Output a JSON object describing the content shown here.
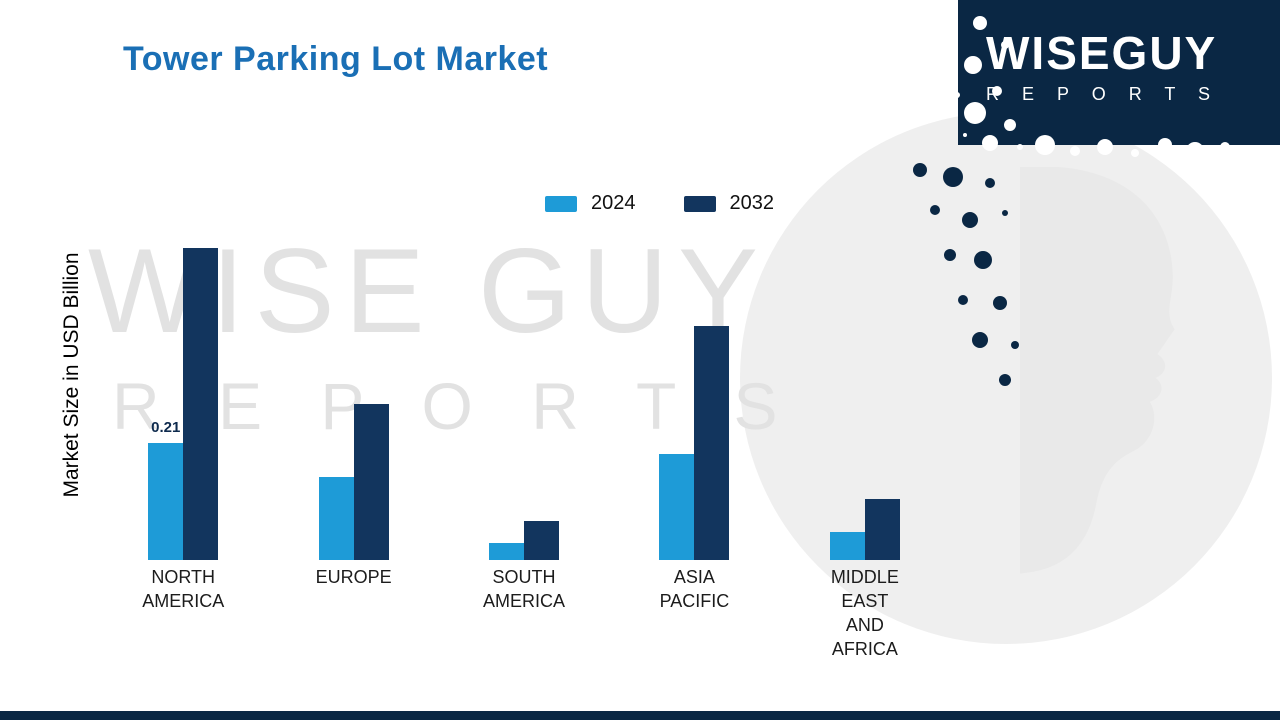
{
  "page": {
    "title": "Tower Parking Lot Market",
    "y_axis_label": "Market Size in USD Billion"
  },
  "brand": {
    "line1": "WISEGUY",
    "line2": "R E P O R T S"
  },
  "watermark": {
    "line1": "WISE GUY",
    "line2": "R E P O R T S"
  },
  "colors": {
    "title": "#1a6fb5",
    "series_2024": "#1e9bd7",
    "series_2032": "#12355e",
    "brand_panel": "#0a2744",
    "watermark": "#e2e2e2",
    "background_circle": "#efefef"
  },
  "chart_data": {
    "type": "bar",
    "title": "Tower Parking Lot Market",
    "ylabel": "Market Size in USD Billion",
    "xlabel": "",
    "categories": [
      "NORTH AMERICA",
      "EUROPE",
      "SOUTH AMERICA",
      "ASIA PACIFIC",
      "MIDDLE EAST AND AFRICA"
    ],
    "category_display": [
      "NORTH\nAMERICA",
      "EUROPE",
      "SOUTH\nAMERICA",
      "ASIA\nPACIFIC",
      "MIDDLE\nEAST\nAND\nAFRICA"
    ],
    "series": [
      {
        "name": "2024",
        "color": "#1e9bd7",
        "values": [
          0.21,
          0.15,
          0.03,
          0.19,
          0.05
        ]
      },
      {
        "name": "2032",
        "color": "#12355e",
        "values": [
          0.56,
          0.28,
          0.07,
          0.42,
          0.11
        ]
      }
    ],
    "ylim": [
      0,
      0.62
    ],
    "grid": false,
    "legend_position": "top",
    "data_labels": [
      {
        "category_index": 0,
        "series": "2024",
        "text": "0.21"
      }
    ]
  }
}
